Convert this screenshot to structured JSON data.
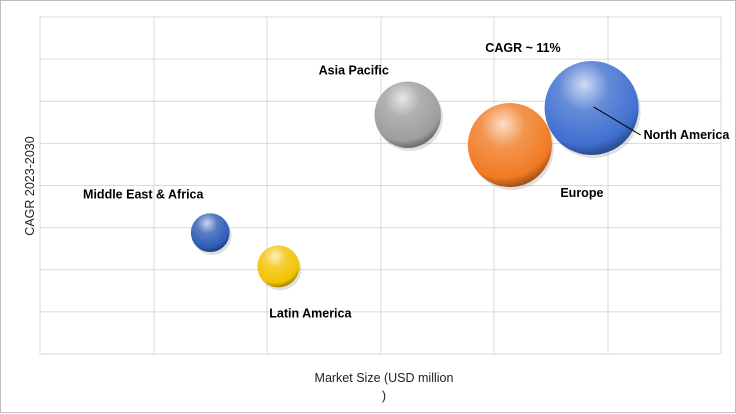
{
  "chart_data": {
    "type": "bubble",
    "xlabel": "Market  Size (USD million\n)",
    "ylabel": "CAGR 2023-2030",
    "grid": true,
    "annotation": "CAGR ~ 11%",
    "series": [
      {
        "name": "North America",
        "x": 8.1,
        "y": 7.3,
        "size": 10.0,
        "color": "#3f6fd0"
      },
      {
        "name": "Europe",
        "x": 6.9,
        "y": 6.2,
        "size": 8.0,
        "color": "#f07a22"
      },
      {
        "name": "Asia Pacific",
        "x": 5.4,
        "y": 7.1,
        "size": 5.0,
        "color": "#9e9e9e"
      },
      {
        "name": "Middle East & Africa",
        "x": 2.5,
        "y": 3.6,
        "size": 1.7,
        "color": "#2d5bb5"
      },
      {
        "name": "Latin America",
        "x": 3.5,
        "y": 2.6,
        "size": 2.0,
        "color": "#f2c200"
      }
    ],
    "xlim": [
      0,
      10
    ],
    "ylim": [
      0,
      10
    ]
  }
}
